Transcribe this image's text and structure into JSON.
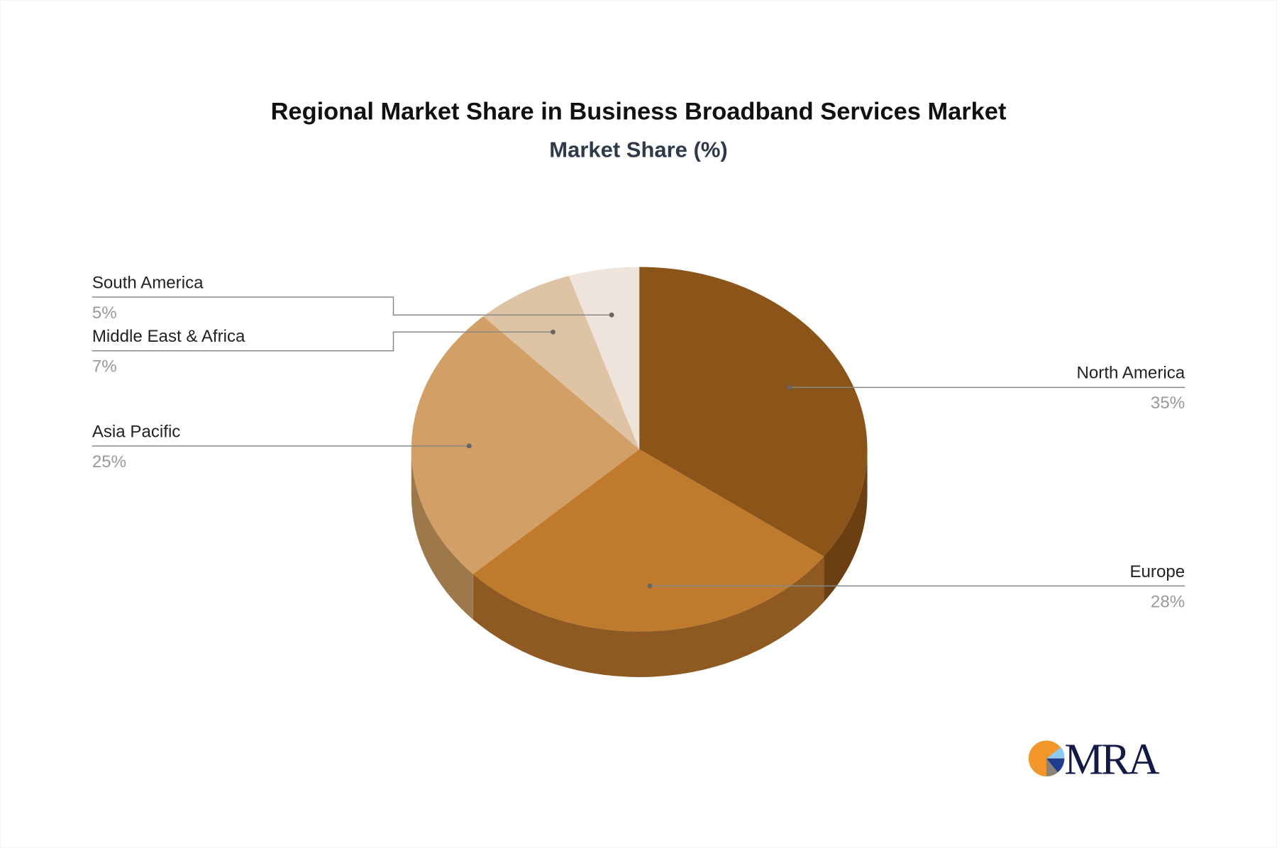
{
  "chart_data": {
    "type": "pie",
    "style": "3d",
    "title": "Regional Market Share in Business Broadband Services Market",
    "subtitle": "Market Share (%)",
    "categories": [
      "North America",
      "Europe",
      "Asia Pacific",
      "Middle East & Africa",
      "South America"
    ],
    "values": [
      35,
      28,
      25,
      7,
      5
    ],
    "value_labels": [
      "35%",
      "28%",
      "25%",
      "7%",
      "5%"
    ],
    "colors": [
      "#8B5419",
      "#BF7A2E",
      "#D2A066",
      "#DEC3A4",
      "#EEE4DC"
    ],
    "side_colors": [
      "#6B3F12",
      "#8E5A22",
      "#9C784B",
      "#B09A80",
      "#C0B6AE"
    ]
  },
  "logo": {
    "text": "MRA",
    "colors": [
      "#F0962A",
      "#8ECBF0",
      "#1F3D8F",
      "#8A8178",
      "#121A45"
    ]
  }
}
